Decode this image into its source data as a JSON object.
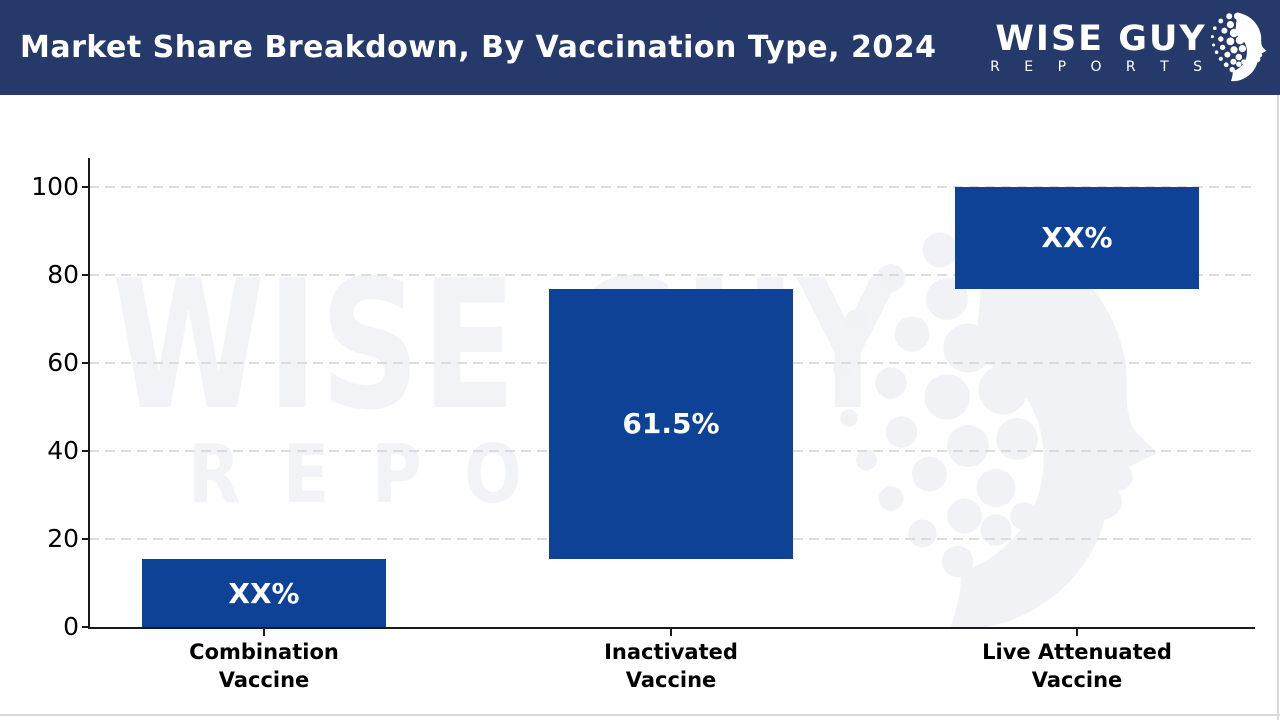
{
  "header": {
    "title": "Market Share Breakdown, By Vaccination Type, 2024",
    "logo": {
      "line1": "WISE GUY",
      "line2": "R E P O R T S"
    }
  },
  "watermark": {
    "line1": "WISE GUY",
    "line2": "REPORTS"
  },
  "chart_data": {
    "type": "bar",
    "subtype": "floating-waterfall",
    "title": "Market Share Breakdown, By Vaccination Type, 2024",
    "categories": [
      "Combination Vaccine",
      "Inactivated Vaccine",
      "Live Attenuated Vaccine"
    ],
    "bars": [
      {
        "category": "Combination Vaccine",
        "start": 0,
        "end": 15.4,
        "value": 15.4,
        "label": "XX%"
      },
      {
        "category": "Inactivated Vaccine",
        "start": 15.4,
        "end": 76.9,
        "value": 61.5,
        "label": "61.5%"
      },
      {
        "category": "Live Attenuated Vaccine",
        "start": 76.9,
        "end": 100,
        "value": 23.1,
        "label": "XX%"
      }
    ],
    "xlabel": "",
    "ylabel": "",
    "ylim": [
      0,
      106
    ],
    "yticks": [
      0,
      20,
      40,
      60,
      80,
      100
    ],
    "grid": "horizontal-dashed",
    "legend": "none",
    "colors": {
      "bar": "#0d4296",
      "header_bg": "#25396a",
      "grid_line": "#dcdcdc",
      "axis": "#1a1a1a",
      "watermark": "#f2f3f6"
    }
  }
}
